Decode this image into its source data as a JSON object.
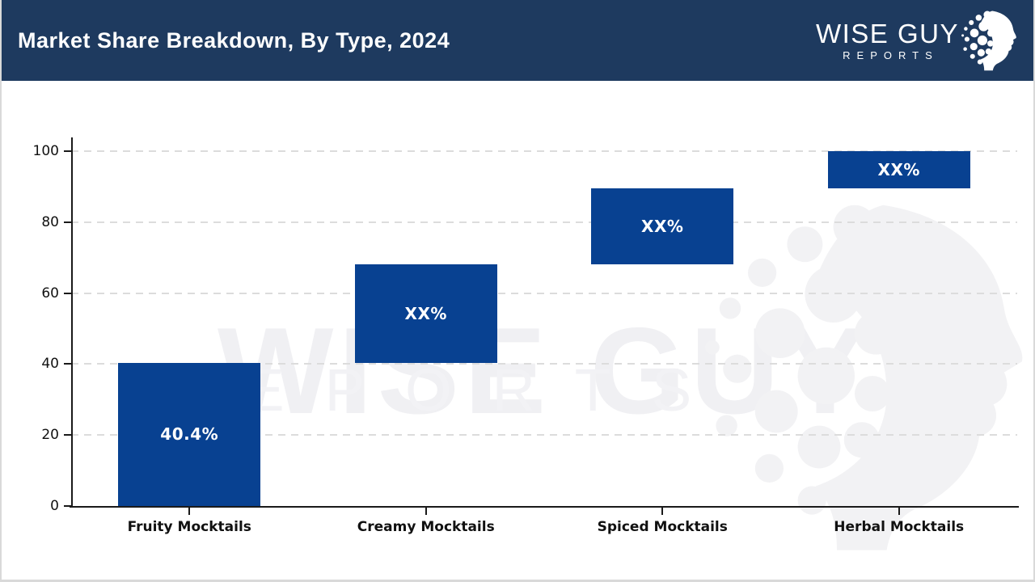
{
  "header": {
    "title": "Market Share Breakdown, By Type, 2024",
    "logo": {
      "primary": "WISE GUY",
      "secondary": "REPORTS"
    }
  },
  "watermark": {
    "line1": "WISE GUY",
    "line2": "REPORTS"
  },
  "chart_data": {
    "type": "bar",
    "variant": "waterfall",
    "title": "Market Share Breakdown, By Type, 2024",
    "categories": [
      "Fruity Mocktails",
      "Creamy Mocktails",
      "Spiced Mocktails",
      "Herbal Mocktails"
    ],
    "bars": [
      {
        "category": "Fruity Mocktails",
        "start": 0,
        "end": 40.4,
        "label": "40.4%"
      },
      {
        "category": "Creamy Mocktails",
        "start": 40.4,
        "end": 68,
        "label": "XX%"
      },
      {
        "category": "Spiced Mocktails",
        "start": 68,
        "end": 89.5,
        "label": "XX%"
      },
      {
        "category": "Herbal Mocktails",
        "start": 89.5,
        "end": 100,
        "label": "XX%"
      }
    ],
    "yticks": [
      0,
      20,
      40,
      60,
      80,
      100
    ],
    "ylim": [
      0,
      104
    ],
    "xlabel": "",
    "ylabel": "",
    "grid": "dashed-horizontal",
    "legend": "none"
  },
  "colors": {
    "header_bg": "#1e3a5f",
    "title_text": "#ffffff",
    "bar": "#084191",
    "bar_label": "#ffffff",
    "axis": "#1a1a1a",
    "grid": "#dcdcdc",
    "watermark": "#f0f0f3",
    "border": "#d9d9d9",
    "page_bg": "#ffffff"
  }
}
